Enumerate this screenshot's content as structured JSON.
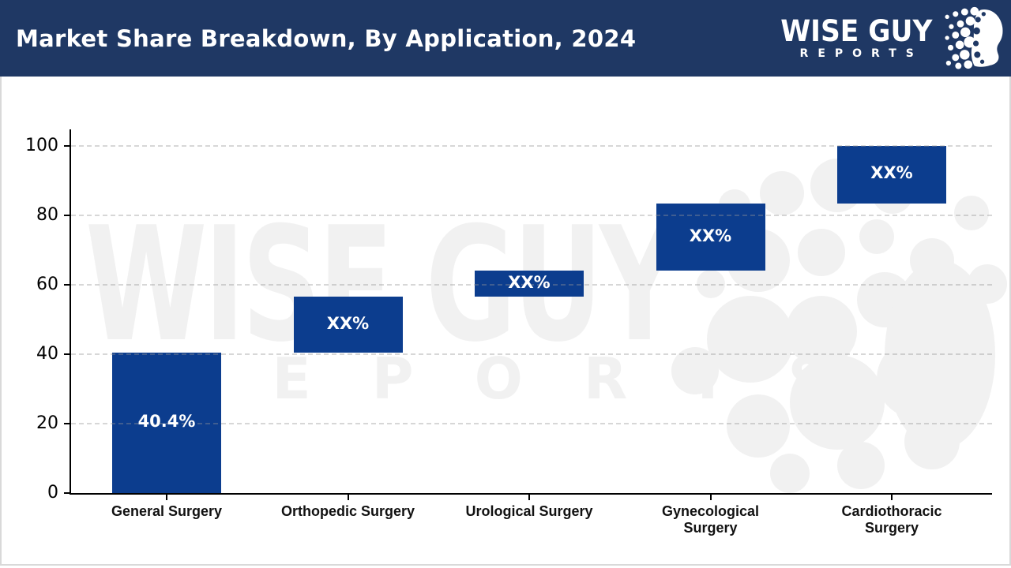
{
  "brand": {
    "header_bg": "#1f3864",
    "bar_color": "#0c3d8e",
    "gridline_color": "#d8d8d8",
    "watermark_color": "#f1f1f1"
  },
  "header": {
    "title": "Market Share Breakdown, By Application, 2024",
    "logo_line1": "WISE GUY",
    "logo_line2": "REPORTS"
  },
  "watermark": {
    "line1": "WISE GUY",
    "line2": "R E P O R T S"
  },
  "chart_data": {
    "type": "bar",
    "subtype": "waterfall",
    "title": "Market Share Breakdown, By Application, 2024",
    "categories": [
      "General Surgery",
      "Orthopedic Surgery",
      "Urological Surgery",
      "Gynecological Surgery",
      "Cardiothoracic Surgery"
    ],
    "bars": [
      {
        "category": "General Surgery",
        "lines": [
          "General Surgery"
        ],
        "start": 0,
        "end": 40.4,
        "label": "40.4%"
      },
      {
        "category": "Orthopedic Surgery",
        "lines": [
          "Orthopedic Surgery"
        ],
        "start": 40.4,
        "end": 56.5,
        "label": "XX%"
      },
      {
        "category": "Urological Surgery",
        "lines": [
          "Urological Surgery"
        ],
        "start": 56.5,
        "end": 64.0,
        "label": "XX%"
      },
      {
        "category": "Gynecological Surgery",
        "lines": [
          "Gynecological",
          "Surgery"
        ],
        "start": 64.0,
        "end": 83.5,
        "label": "XX%"
      },
      {
        "category": "Cardiothoracic Surgery",
        "lines": [
          "Cardiothoracic",
          "Surgery"
        ],
        "start": 83.5,
        "end": 100.0,
        "label": "XX%"
      }
    ],
    "yticks": [
      0,
      20,
      40,
      60,
      80,
      100
    ],
    "ylim": [
      0,
      105
    ],
    "xlabel": "",
    "ylabel": "",
    "grid": "horizontal-dashed",
    "legend": "none",
    "bar_color": "#0c3d8e",
    "value_label_color": "#ffffff"
  }
}
